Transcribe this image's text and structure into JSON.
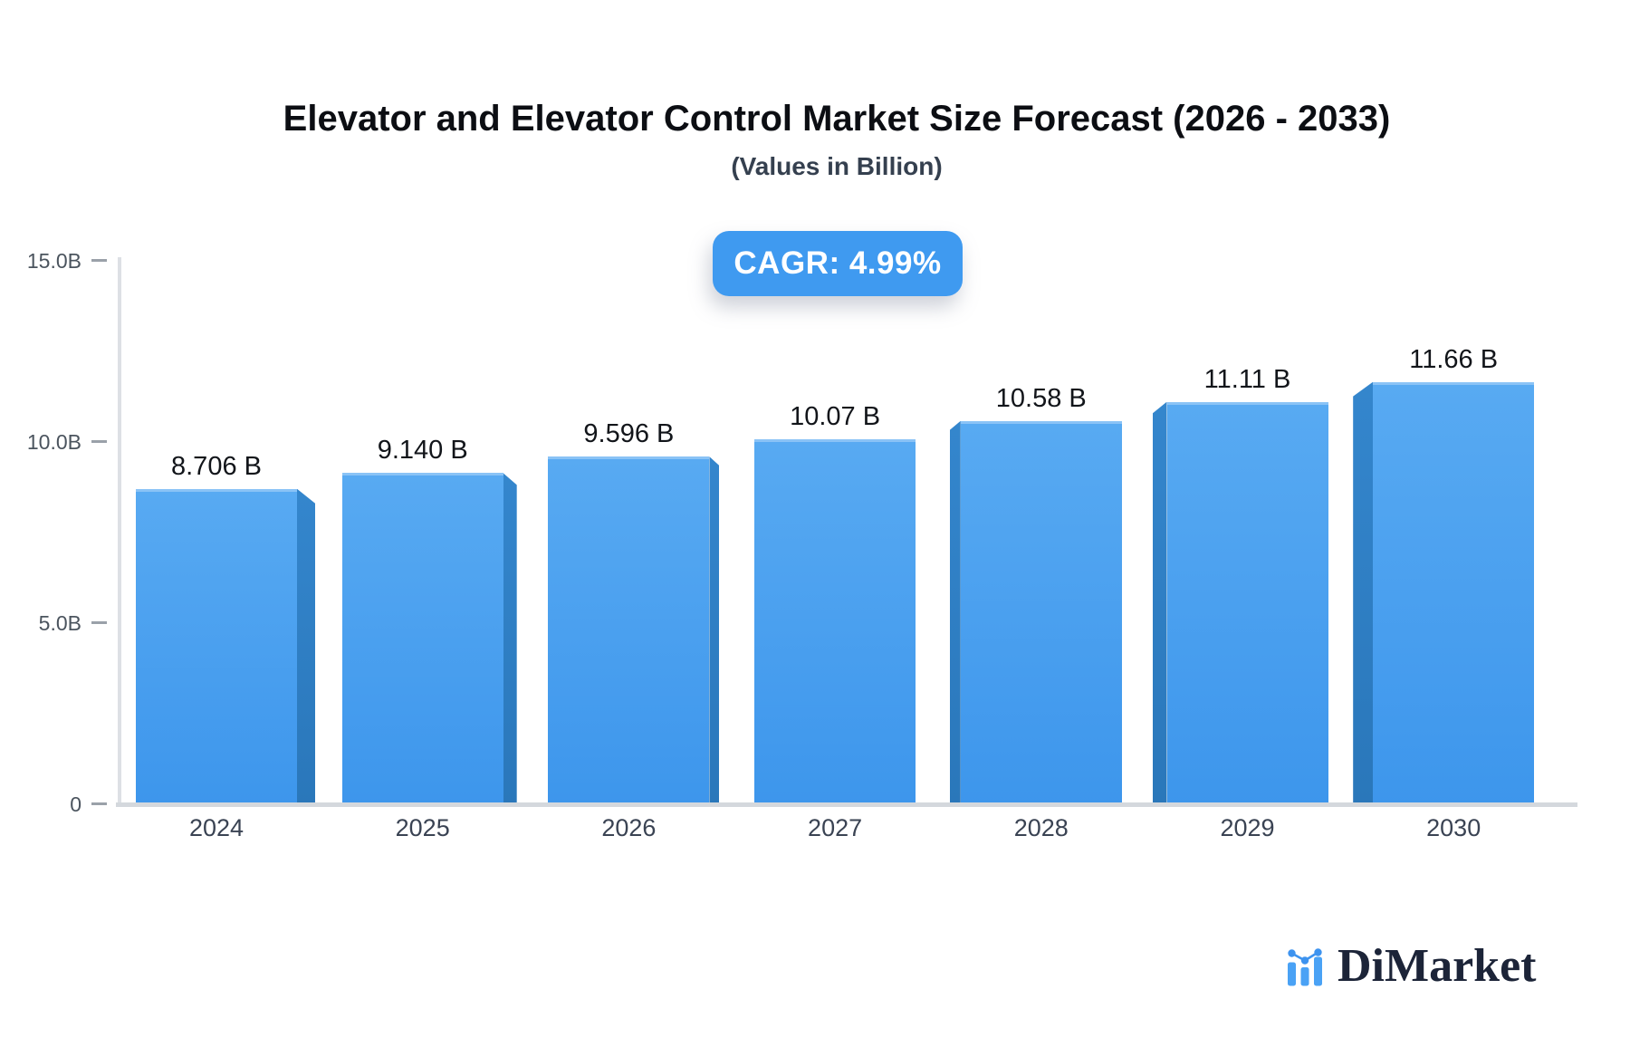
{
  "header": {
    "title": "Elevator and Elevator Control Market Size Forecast (2026 - 2033)",
    "subtitle": "(Values in Billion)"
  },
  "cagr_badge": {
    "label": "CAGR: 4.99%",
    "bg_color": "#3f9af0",
    "text_color": "#ffffff"
  },
  "chart_data": {
    "type": "bar",
    "title": "Elevator and Elevator Control Market Size Forecast (2026 - 2033)",
    "subtitle": "(Values in Billion)",
    "annotation": "CAGR: 4.99%",
    "categories": [
      "2024",
      "2025",
      "2026",
      "2027",
      "2028",
      "2029",
      "2030"
    ],
    "values": [
      8.706,
      9.14,
      9.596,
      10.07,
      10.58,
      11.11,
      11.66
    ],
    "value_labels": [
      "8.706 B",
      "9.140 B",
      "9.596 B",
      "10.07 B",
      "10.58 B",
      "11.11 B",
      "11.66 B"
    ],
    "unit": "Billion",
    "xlabel": "",
    "ylabel": "",
    "ylim": [
      0,
      15
    ],
    "yticks": [
      {
        "value": 15,
        "label": "15.0B"
      },
      {
        "value": 10,
        "label": "10.0B"
      },
      {
        "value": 5,
        "label": "5.0B"
      },
      {
        "value": 0,
        "label": "0"
      }
    ],
    "grid": false,
    "legend": false,
    "bar_face_top_color": "#58aaf2",
    "bar_face_bottom_color": "#3d96ec",
    "bar_side_top_color": "#3486cd",
    "bar_side_bottom_color": "#2a77ba"
  },
  "footer": {
    "brand": "DiMarket",
    "brand_icon": "mini-bar-chart-icon",
    "brand_color": "#1c2438",
    "brand_accent": "#4aa2f5",
    "brand_accent_dark": "#3d93ef"
  }
}
